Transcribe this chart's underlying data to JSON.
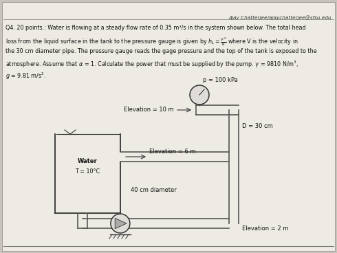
{
  "bg_color": "#c8c4bc",
  "paper_color": "#eeebe4",
  "header_text": "Ajay Chatterjee/ajaychatterjee@sfsu.edu",
  "line1": "Q4. 20 points.: Water is flowing at a steady flow rate of 0.35 m³/s in the system shown below. The total head",
  "line2": "loss from the liquid surface in the tank to the pressure gauge is given by $h_L = \\frac{V^2}{g}$ where V is the velocity in",
  "line3": "the 30 cm diameter pipe. The pressure gauge reads the gage pressure and the top of the tank is exposed to the",
  "line4": "atmosphere. Assume that $\\alpha$ = 1. Calculate the power that must be supplied by the pump. $\\gamma$ = 9810 N/m$^3$,",
  "line5": "$g$ = 9.81 m/s$^2$.",
  "label_p": "p = 100 kPa",
  "label_elev10": "Elevation = 10 m",
  "label_elev6": "Elevation = 6 m",
  "label_elev2": "Elevation = 2 m",
  "label_D30": "D = 30 cm",
  "label_D40": "40 cm diameter",
  "label_water": "Water",
  "label_temp": "T = 10°C",
  "line_color": "#333333",
  "pipe_color": "#555555",
  "tank_fill": "#d0ccc4",
  "gauge_fill": "#e0ddd8"
}
